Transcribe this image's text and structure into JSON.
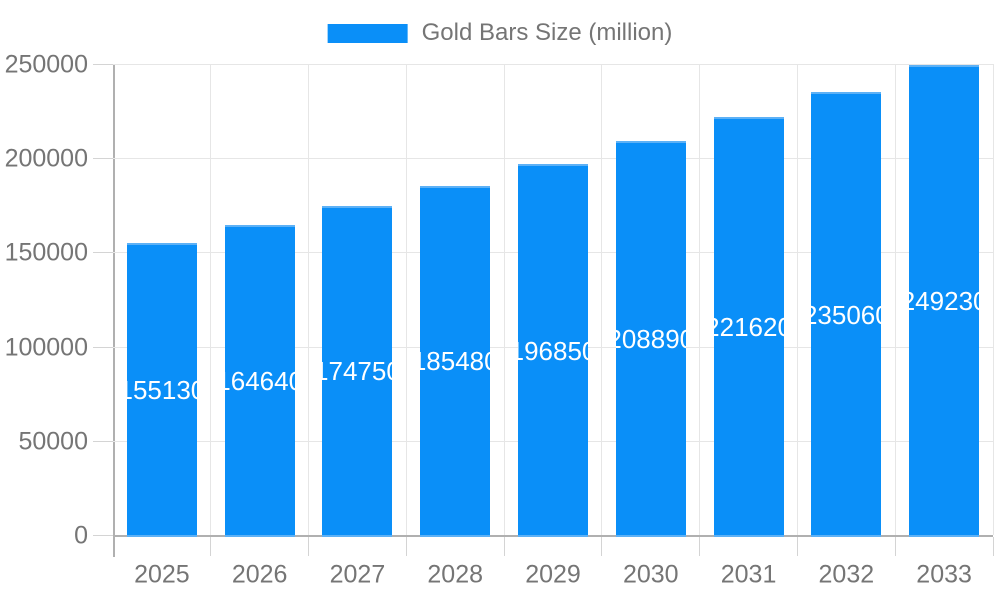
{
  "chart_data": {
    "type": "bar",
    "title": "",
    "legend": "Gold Bars Size (million)",
    "legend_position": "top-center",
    "categories": [
      "2025",
      "2026",
      "2027",
      "2028",
      "2029",
      "2030",
      "2031",
      "2032",
      "2033"
    ],
    "series": [
      {
        "name": "Gold Bars Size (million)",
        "values": [
          155130,
          164640,
          174750,
          185480,
          196850,
          208890,
          221620,
          235060,
          249230
        ]
      }
    ],
    "bar_value_labels": [
      "155130",
      "164640",
      "174750",
      "185480",
      "196850",
      "208890",
      "221620",
      "235060",
      "249230"
    ],
    "xlabel": "",
    "ylabel": "",
    "y_ticks": [
      0,
      50000,
      100000,
      150000,
      200000,
      250000
    ],
    "y_tick_labels": [
      "0",
      "50000",
      "100000",
      "150000",
      "200000",
      "250000"
    ],
    "ylim": [
      0,
      250000
    ],
    "grid": true,
    "colors": {
      "bar": "#0a8ff8",
      "bar_border": "#5db1f6",
      "axis": "#b0b0b0",
      "grid": "#e6e6e6",
      "tick": "#d4d4d4",
      "axis_text": "#757575",
      "bar_label_text": "#ffffff",
      "legend_text": "#757575",
      "background": "#ffffff"
    }
  }
}
